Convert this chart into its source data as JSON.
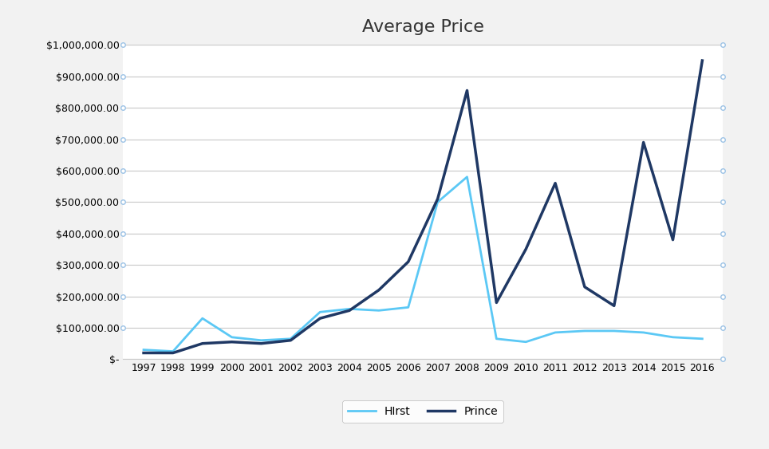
{
  "title": "Average Price",
  "years": [
    1997,
    1998,
    1999,
    2000,
    2001,
    2002,
    2003,
    2004,
    2005,
    2006,
    2007,
    2008,
    2009,
    2010,
    2011,
    2012,
    2013,
    2014,
    2015,
    2016
  ],
  "hirst": [
    30000,
    25000,
    130000,
    70000,
    60000,
    65000,
    150000,
    160000,
    155000,
    165000,
    500000,
    580000,
    65000,
    55000,
    85000,
    90000,
    90000,
    85000,
    70000,
    65000
  ],
  "prince": [
    20000,
    20000,
    50000,
    55000,
    50000,
    60000,
    130000,
    155000,
    220000,
    310000,
    510000,
    855000,
    180000,
    350000,
    560000,
    230000,
    170000,
    690000,
    380000,
    950000
  ],
  "hirst_color": "#5BC8F5",
  "prince_color": "#1F3864",
  "background_color": "#FFFFFF",
  "outer_bg_color": "#F2F2F2",
  "grid_color": "#C8C8C8",
  "ylim": [
    0,
    1000000
  ],
  "yticks": [
    0,
    100000,
    200000,
    300000,
    400000,
    500000,
    600000,
    700000,
    800000,
    900000,
    1000000
  ],
  "legend_hirst": "HIrst",
  "legend_prince": "Prince",
  "title_fontsize": 16,
  "tick_fontsize": 9,
  "dot_color": "#9DC3E6",
  "dot_color_right": "#9DC3E6"
}
